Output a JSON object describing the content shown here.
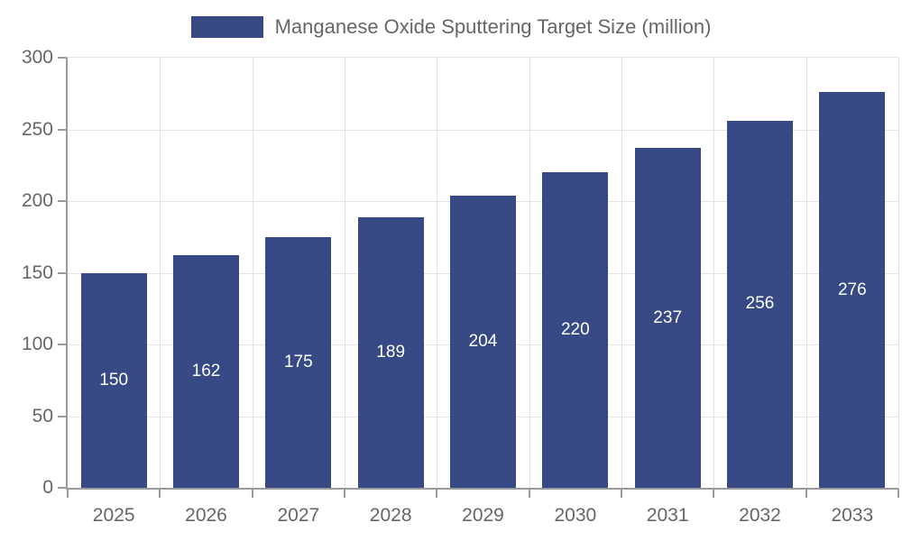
{
  "legend": {
    "label": "Manganese Oxide Sputtering Target Size (million)"
  },
  "chart_data": {
    "type": "bar",
    "title": "Manganese Oxide Sputtering Target Size (million)",
    "categories": [
      "2025",
      "2026",
      "2027",
      "2028",
      "2029",
      "2030",
      "2031",
      "2032",
      "2033"
    ],
    "values": [
      150,
      162,
      175,
      189,
      204,
      220,
      237,
      256,
      276
    ],
    "xlabel": "",
    "ylabel": "",
    "ylim": [
      0,
      300
    ],
    "yticks": [
      0,
      50,
      100,
      150,
      200,
      250,
      300
    ],
    "grid": true,
    "legend_position": "top",
    "bar_color": "#384A85",
    "bar_label_color": "#ffffff",
    "axis_text_color": "#666666",
    "gridline_color": "#e4e4e7",
    "axis_line_color": "#9a9a9a"
  }
}
